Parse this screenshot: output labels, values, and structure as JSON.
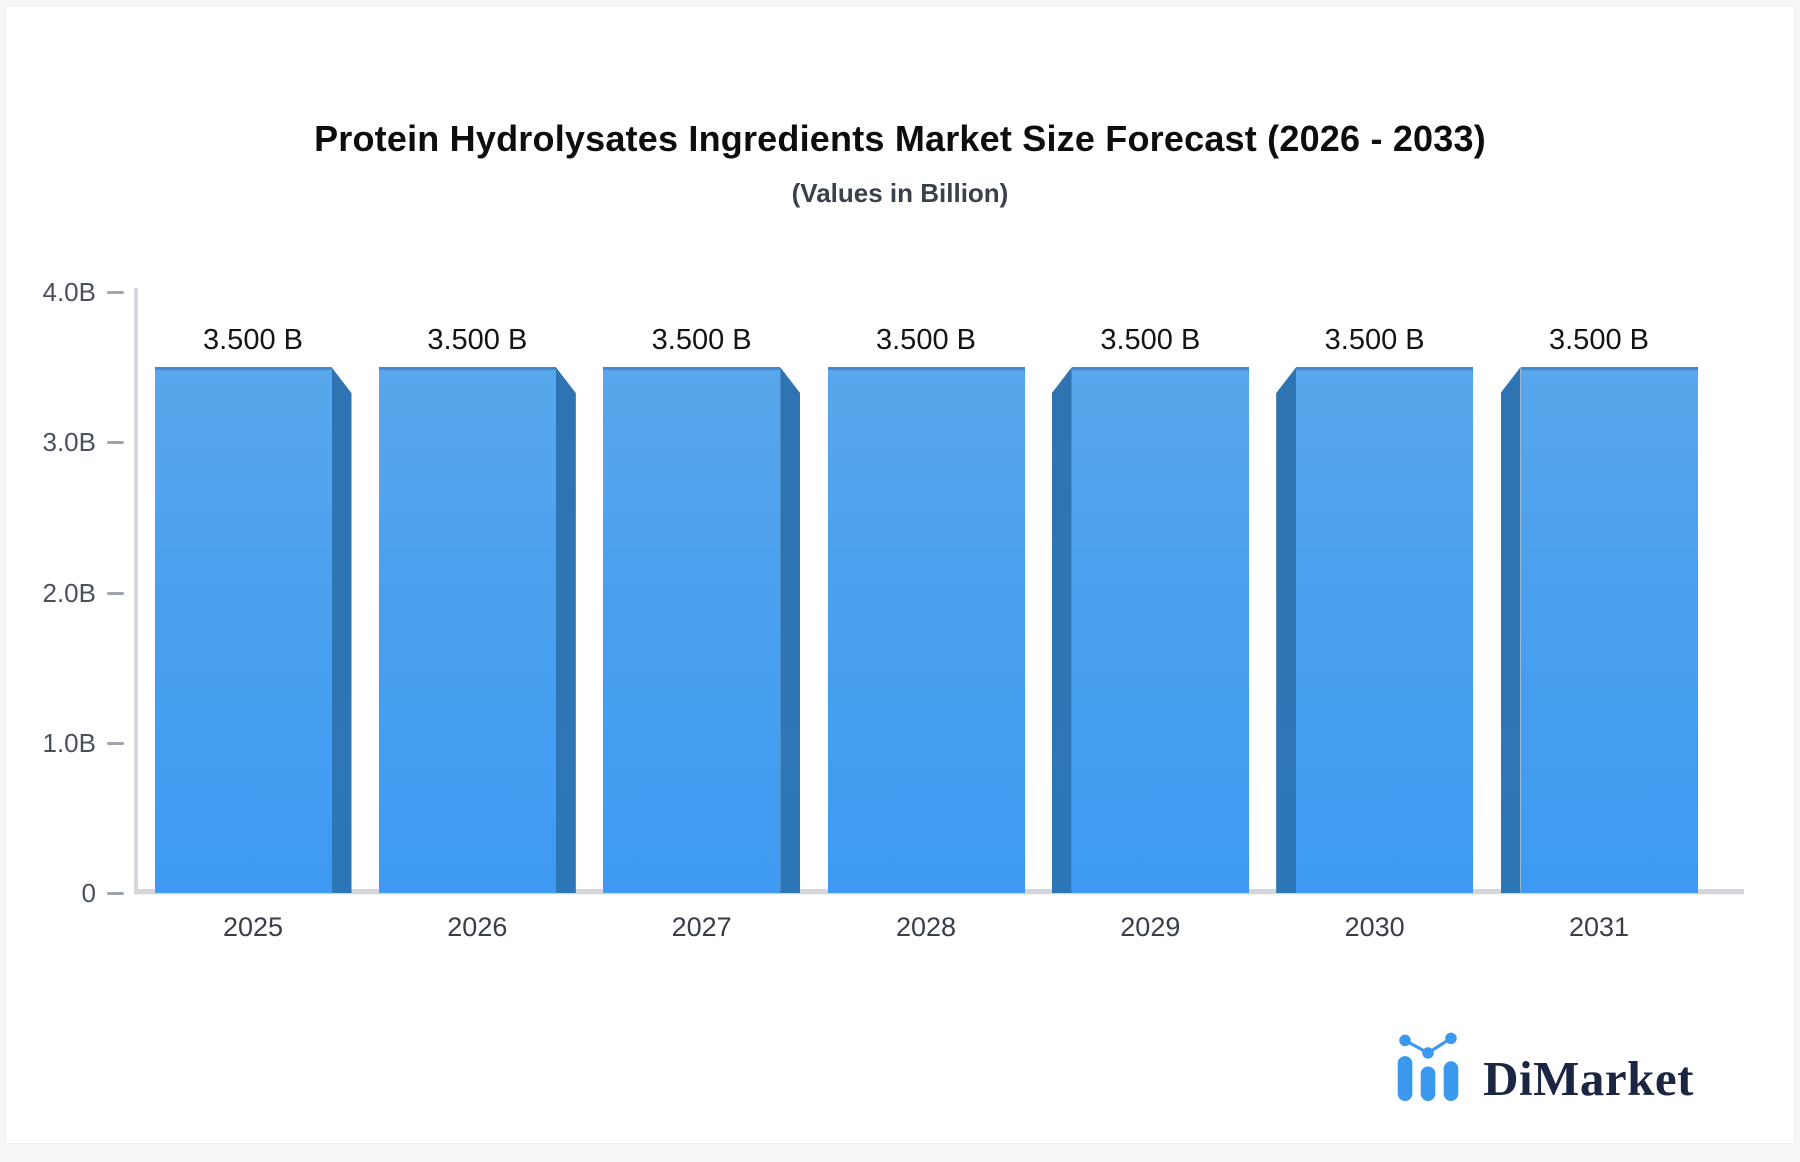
{
  "title": "Protein Hydrolysates Ingredients Market Size Forecast (2026 - 2033)",
  "subtitle": "(Values in Billion)",
  "brand": {
    "name": "DiMarket",
    "icon": "bar-line-chart-icon",
    "icon_color": "#3b98ef",
    "name_color": "#1b2742"
  },
  "chart_data": {
    "type": "bar",
    "title": "Protein Hydrolysates Ingredients Market Size Forecast (2026 - 2033)",
    "subtitle": "(Values in Billion)",
    "categories": [
      "2025",
      "2026",
      "2027",
      "2028",
      "2029",
      "2030",
      "2031"
    ],
    "values": [
      3.5,
      3.5,
      3.5,
      3.5,
      3.5,
      3.5,
      3.5
    ],
    "bar_labels": [
      "3.500 B",
      "3.500 B",
      "3.500 B",
      "3.500 B",
      "3.500 B",
      "3.500 B",
      "3.500 B"
    ],
    "xlabel": "",
    "ylabel": "",
    "ylim": [
      0,
      4.0
    ],
    "yticks": [
      {
        "value": 0,
        "label": "0"
      },
      {
        "value": 1.0,
        "label": "1.0B"
      },
      {
        "value": 2.0,
        "label": "2.0B"
      },
      {
        "value": 3.0,
        "label": "3.0B"
      },
      {
        "value": 4.0,
        "label": "4.0B"
      }
    ],
    "grid": false,
    "legend": false,
    "bar_color_top": "#58a7ec",
    "bar_color_bottom": "#3e9af2",
    "bar_side_color": "#2e76b5",
    "axis_color": "#d3d6db"
  }
}
